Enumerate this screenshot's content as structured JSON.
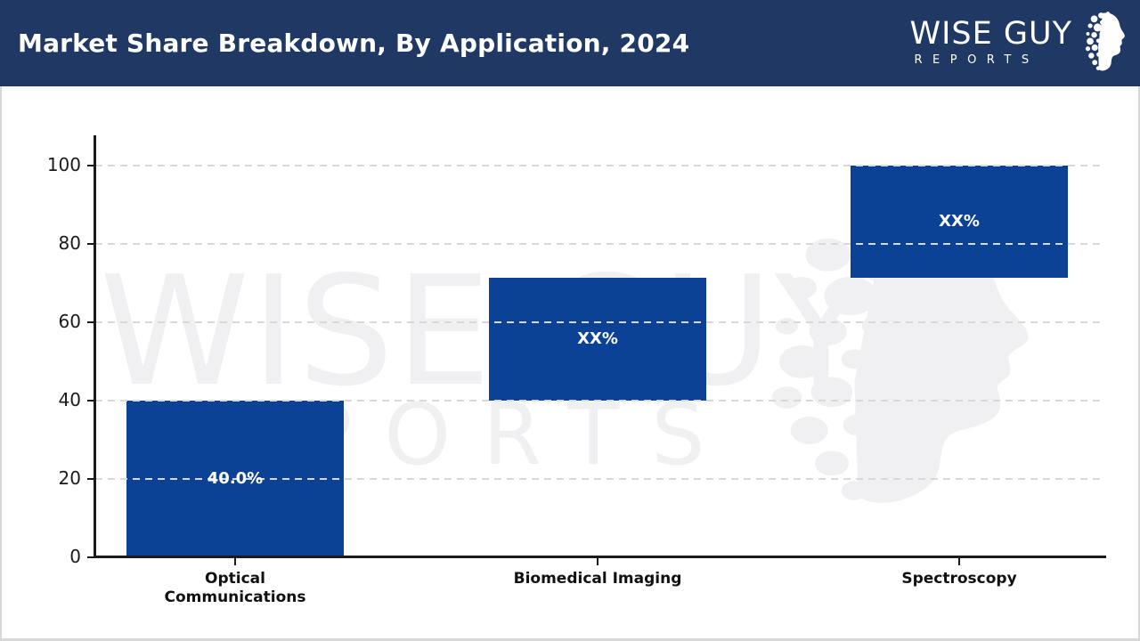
{
  "header": {
    "title": "Market Share Breakdown, By Application, 2024"
  },
  "logo": {
    "line1": "WISE GUY",
    "line2": "REPORTS",
    "icon": "dotted-head-profile-icon"
  },
  "watermark": {
    "line1": "WISE GUY",
    "line2": "REPORTS",
    "icon": "dotted-head-profile-watermark"
  },
  "chart_data": {
    "type": "bar",
    "variant": "floating segmented bars (waterfall style), each bar stacks on the previous total",
    "title": "Market Share Breakdown, By Application, 2024",
    "categories": [
      "Optical Communications",
      "Biomedical Imaging",
      "Spectroscopy"
    ],
    "bars": [
      {
        "category": "Optical Communications",
        "from": 0,
        "to": 40.0,
        "value": 40.0,
        "label": "40.0%"
      },
      {
        "category": "Biomedical Imaging",
        "from": 40.0,
        "to": 71.3,
        "value": 31.3,
        "label": "XX%"
      },
      {
        "category": "Spectroscopy",
        "from": 71.3,
        "to": 100.0,
        "value": 28.7,
        "label": "XX%"
      }
    ],
    "xlabel": "",
    "ylabel": "",
    "ylim": [
      0,
      100
    ],
    "yticks": [
      0,
      20,
      40,
      60,
      80,
      100
    ],
    "grid": "horizontal dashed gridlines at each y tick, drawn over bars",
    "legend": "none",
    "bar_color": "#0C4295",
    "bar_label_color": "#ffffff"
  },
  "colors": {
    "header_bg": "#1F3864",
    "bar": "#0C4295",
    "axis": "#1a1a1a",
    "grid": "#d9d9d9",
    "watermark": "#f0f0f2",
    "edge_border": "#d8d8d8"
  }
}
